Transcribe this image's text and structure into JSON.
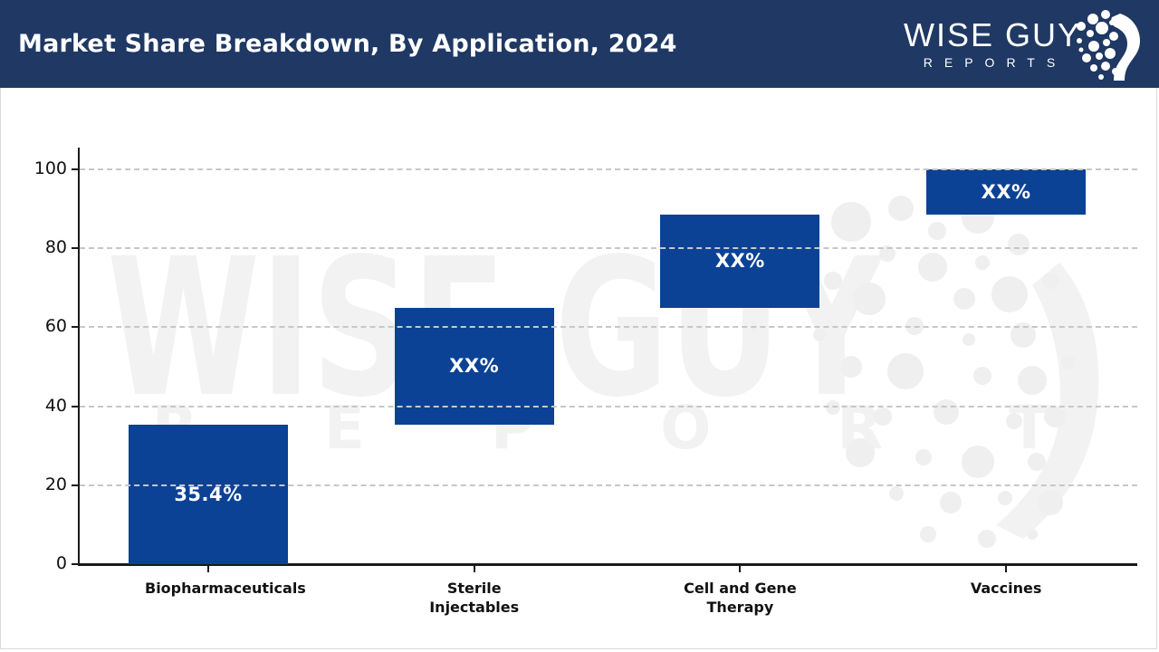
{
  "header": {
    "title": "Market Share Breakdown, By Application, 2024",
    "background_color": "#1F3864",
    "logo": {
      "primary": "WISE GUY",
      "secondary": "REPORTS"
    }
  },
  "watermark": {
    "primary": "WISE GUY",
    "secondary": "R E P O R T S"
  },
  "chart_data": {
    "type": "bar",
    "subtype": "floating-segment-waterfall",
    "title": "Market Share Breakdown, By Application, 2024",
    "categories": [
      "Biopharmaceuticals",
      "Sterile Injectables",
      "Cell and Gene Therapy",
      "Vaccines"
    ],
    "series": [
      {
        "name": "Market share (%)",
        "segments": [
          {
            "category": "Biopharmaceuticals",
            "from": 0,
            "to": 35.4,
            "label": "35.4%"
          },
          {
            "category": "Sterile Injectables",
            "from": 35.4,
            "to": 65,
            "label": "XX%"
          },
          {
            "category": "Cell and Gene Therapy",
            "from": 65,
            "to": 88.5,
            "label": "XX%"
          },
          {
            "category": "Vaccines",
            "from": 88.5,
            "to": 100,
            "label": "XX%"
          }
        ]
      }
    ],
    "ylim": [
      0,
      100
    ],
    "yticks": [
      0,
      20,
      40,
      60,
      80,
      100
    ],
    "grid": "horizontal dashed",
    "legend": "none",
    "bar_color": "#0B4295",
    "bar_label_color": "#FFFFFF",
    "axis_color": "#1a1a1a"
  }
}
